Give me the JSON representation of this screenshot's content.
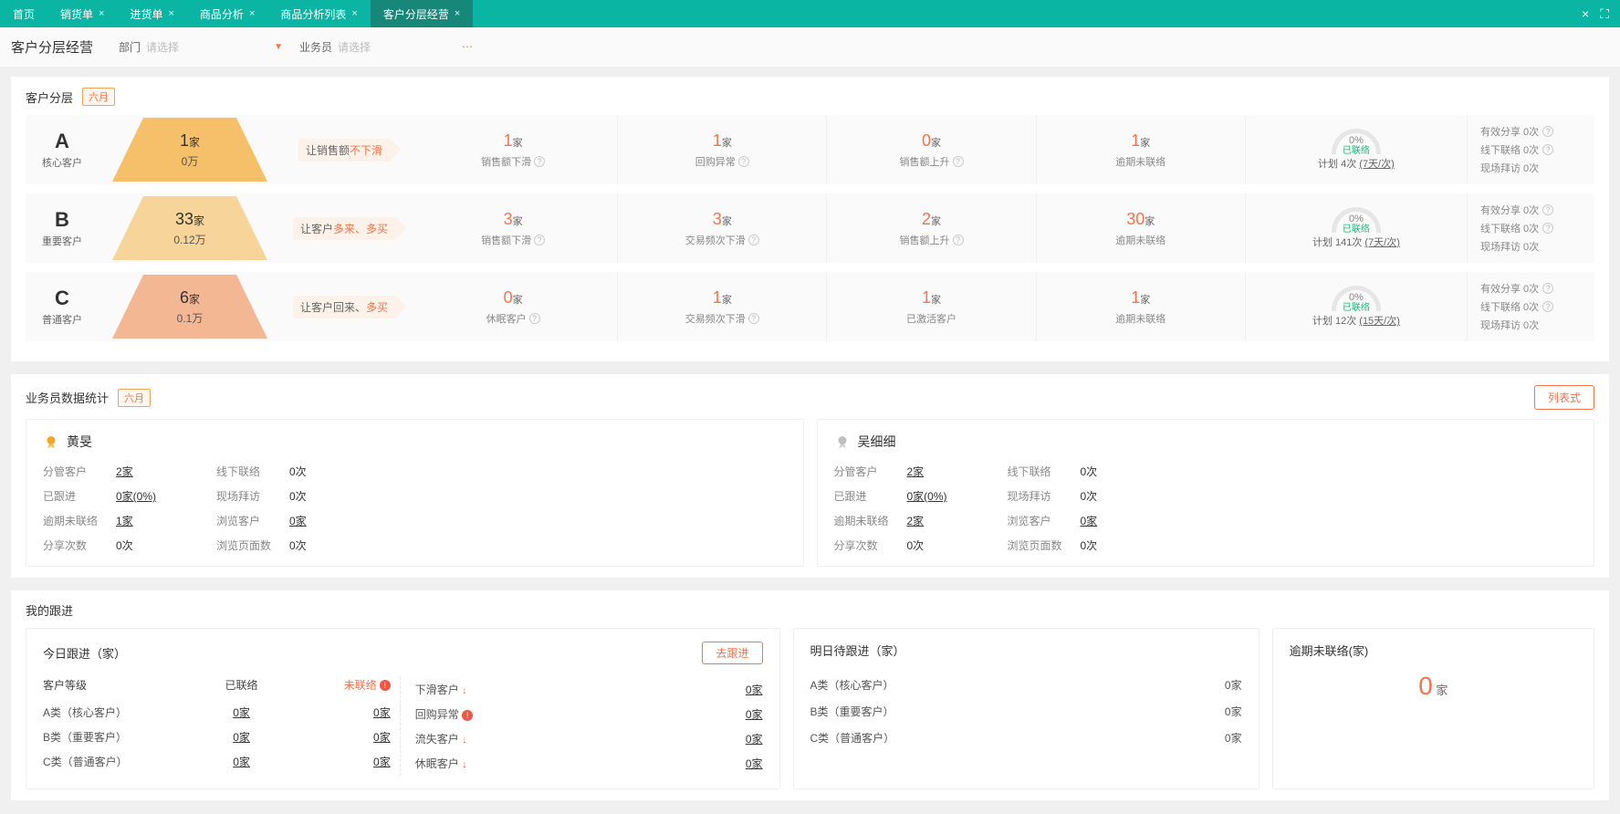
{
  "colors": {
    "brand_teal": "#0ab5a3",
    "brand_teal_dark": "#168779",
    "accent_orange": "#f5734a",
    "green": "#26b37a",
    "trap_a": "#f6c06b",
    "trap_b": "#f6d49a",
    "trap_c": "#f4b794"
  },
  "tabs": [
    {
      "label": "首页",
      "closable": false
    },
    {
      "label": "销货单",
      "closable": true
    },
    {
      "label": "进货单",
      "closable": true
    },
    {
      "label": "商品分析",
      "closable": true
    },
    {
      "label": "商品分析列表",
      "closable": true
    },
    {
      "label": "客户分层经营",
      "closable": true,
      "active": true
    }
  ],
  "filter": {
    "page_title": "客户分层经营",
    "dept_label": "部门",
    "dept_placeholder": "请选择",
    "sales_label": "业务员",
    "sales_placeholder": "请选择"
  },
  "tier_panel": {
    "title": "客户分层",
    "month_tag": "六月"
  },
  "tiers": [
    {
      "letter": "A",
      "sub": "核心客户",
      "trap_color": "#f6c06b",
      "count": "1",
      "count_unit": "家",
      "amount": "0万",
      "slogan_pre": "让销售额",
      "slogan_hl": "不下滑",
      "metrics": [
        {
          "value": "1",
          "unit": "家",
          "label": "销售额下滑",
          "help": true
        },
        {
          "value": "1",
          "unit": "家",
          "label": "回购异常",
          "help": true
        },
        {
          "value": "0",
          "unit": "家",
          "label": "销售额上升",
          "help": true
        },
        {
          "value": "1",
          "unit": "家",
          "label": "逾期未联络",
          "help": false
        }
      ],
      "gauge": {
        "pct": "0%",
        "status": "已联络",
        "plan_prefix": "计划 4次 ",
        "plan_freq": "(7天/次)"
      },
      "share": [
        {
          "label": "有效分享 0次",
          "help": true
        },
        {
          "label": "线下联络 0次",
          "help": true
        },
        {
          "label": "现场拜访 0次",
          "help": false
        }
      ]
    },
    {
      "letter": "B",
      "sub": "重要客户",
      "trap_color": "#f6d49a",
      "count": "33",
      "count_unit": "家",
      "amount": "0.12万",
      "slogan_pre": "让客户",
      "slogan_hl": "多来、多买",
      "metrics": [
        {
          "value": "3",
          "unit": "家",
          "label": "销售额下滑",
          "help": true
        },
        {
          "value": "3",
          "unit": "家",
          "label": "交易频次下滑",
          "help": true
        },
        {
          "value": "2",
          "unit": "家",
          "label": "销售额上升",
          "help": true
        },
        {
          "value": "30",
          "unit": "家",
          "label": "逾期未联络",
          "help": false
        }
      ],
      "gauge": {
        "pct": "0%",
        "status": "已联络",
        "plan_prefix": "计划 141次 ",
        "plan_freq": "(7天/次)"
      },
      "share": [
        {
          "label": "有效分享 0次",
          "help": true
        },
        {
          "label": "线下联络 0次",
          "help": true
        },
        {
          "label": "现场拜访 0次",
          "help": false
        }
      ]
    },
    {
      "letter": "C",
      "sub": "普通客户",
      "trap_color": "#f4b794",
      "count": "6",
      "count_unit": "家",
      "amount": "0.1万",
      "slogan_pre": "让客户回来、",
      "slogan_hl": "多买",
      "metrics": [
        {
          "value": "0",
          "unit": "家",
          "label": "休眠客户",
          "help": true
        },
        {
          "value": "1",
          "unit": "家",
          "label": "交易频次下滑",
          "help": true
        },
        {
          "value": "1",
          "unit": "家",
          "label": "已激活客户",
          "help": false
        },
        {
          "value": "1",
          "unit": "家",
          "label": "逾期未联络",
          "help": false
        }
      ],
      "gauge": {
        "pct": "0%",
        "status": "已联络",
        "plan_prefix": "计划 12次 ",
        "plan_freq": "(15天/次)"
      },
      "share": [
        {
          "label": "有效分享 0次",
          "help": true
        },
        {
          "label": "线下联络 0次",
          "help": true
        },
        {
          "label": "现场拜访 0次",
          "help": false
        }
      ]
    }
  ],
  "sp_panel": {
    "title": "业务员数据统计",
    "month_tag": "六月",
    "list_btn": "列表式"
  },
  "salespeople": [
    {
      "name": "黄旻",
      "medal_color": "#f5a623",
      "rows": [
        [
          "分管客户",
          "2家",
          true,
          "线下联络",
          "0次",
          false
        ],
        [
          "已跟进",
          "0家(0%)",
          true,
          "现场拜访",
          "0次",
          false
        ],
        [
          "逾期未联络",
          "1家",
          true,
          "浏览客户",
          "0家",
          true
        ],
        [
          "分享次数",
          "0次",
          false,
          "浏览页面数",
          "0次",
          false
        ]
      ]
    },
    {
      "name": "吴细细",
      "medal_color": "#bfbfbf",
      "rows": [
        [
          "分管客户",
          "2家",
          true,
          "线下联络",
          "0次",
          false
        ],
        [
          "已跟进",
          "0家(0%)",
          true,
          "现场拜访",
          "0次",
          false
        ],
        [
          "逾期未联络",
          "2家",
          true,
          "浏览客户",
          "0家",
          true
        ],
        [
          "分享次数",
          "0次",
          false,
          "浏览页面数",
          "0次",
          false
        ]
      ]
    }
  ],
  "followup": {
    "title": "我的跟进",
    "today": {
      "title": "今日跟进（家）",
      "go_btn": "去跟进",
      "left_headers": [
        "客户等级",
        "已联络",
        "未联络"
      ],
      "left_rows": [
        [
          "A类（核心客户）",
          "0家",
          "0家"
        ],
        [
          "B类（重要客户）",
          "0家",
          "0家"
        ],
        [
          "C类（普通客户）",
          "0家",
          "0家"
        ]
      ],
      "right_rows": [
        {
          "label": "下滑客户",
          "value": "0家",
          "arrow": true,
          "err": false
        },
        {
          "label": "回购异常",
          "value": "0家",
          "arrow": false,
          "err": true
        },
        {
          "label": "流失客户",
          "value": "0家",
          "arrow": true,
          "err": false
        },
        {
          "label": "休眠客户",
          "value": "0家",
          "arrow": true,
          "err": false
        }
      ]
    },
    "tomorrow": {
      "title": "明日待跟进（家）",
      "rows": [
        [
          "A类（核心客户）",
          "0家"
        ],
        [
          "B类（重要客户）",
          "0家"
        ],
        [
          "C类（普通客户）",
          "0家"
        ]
      ]
    },
    "overdue": {
      "title": "逾期未联络(家)",
      "value": "0",
      "unit": " 家"
    }
  }
}
